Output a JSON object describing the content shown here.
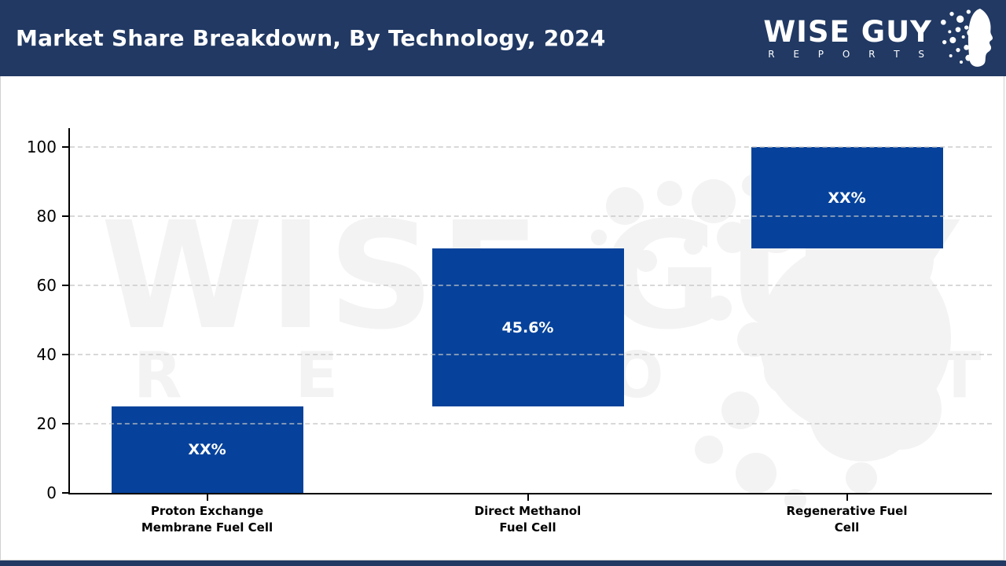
{
  "header": {
    "title": "Market Share Breakdown, By Technology, 2024",
    "logo": {
      "line1": "WISE GUY",
      "line2": "R E P O R T S"
    }
  },
  "watermark": {
    "line1": "WISE GUY",
    "line2": "R E P O R T S"
  },
  "chart_data": {
    "type": "bar",
    "subtype": "waterfall-stacked-segments",
    "title": "Market Share Breakdown, By Technology, 2024",
    "categories": [
      [
        "Proton Exchange",
        "Membrane Fuel Cell"
      ],
      [
        "Direct Methanol",
        "Fuel Cell"
      ],
      [
        "Regenerative Fuel",
        "Cell"
      ]
    ],
    "series": [
      {
        "name": "Market Share (%)",
        "base": [
          0,
          25,
          70.6
        ],
        "values": [
          25,
          45.6,
          29.4
        ]
      }
    ],
    "bar_labels": [
      "XX%",
      "45.6%",
      "XX%"
    ],
    "yticks": [
      0,
      20,
      40,
      60,
      80,
      100
    ],
    "ylim": [
      0,
      100
    ],
    "xlabel": "",
    "ylabel": "",
    "grid": "horizontal-dashed",
    "legend": "none",
    "bar_color": "#06429B"
  },
  "colors": {
    "header_navy": "#213963",
    "bar_blue": "#06429B",
    "gridline_gray": "#c3c3c3",
    "watermark_gray": "#f3f3f3",
    "text_black": "#000000",
    "text_white": "#ffffff"
  }
}
